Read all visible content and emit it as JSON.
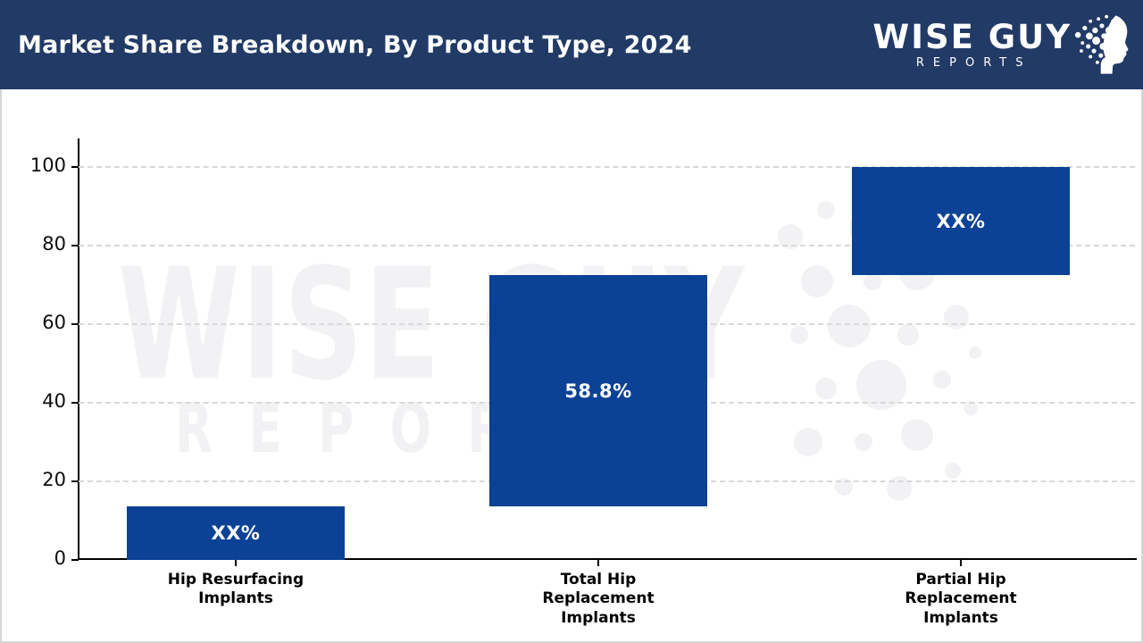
{
  "header": {
    "title": "Market Share Breakdown, By Product Type, 2024",
    "logo": {
      "name": "WISE GUY",
      "subname": "REPORTS"
    }
  },
  "watermark": {
    "line1": "WISE GUY",
    "line2": "REPORTS"
  },
  "chart_data": {
    "type": "bar",
    "subtype": "floating-waterfall-percent",
    "title": "Market Share Breakdown, By Product Type, 2024",
    "categories": [
      "Hip Resurfacing\nImplants",
      "Total Hip\nReplacement\nImplants",
      "Partial Hip\nReplacement\nImplants"
    ],
    "segments": [
      {
        "category": "Hip Resurfacing Implants",
        "label": "XX%",
        "from": 0,
        "to": 13.6
      },
      {
        "category": "Total Hip Replacement Implants",
        "label": "58.8%",
        "from": 13.6,
        "to": 72.4
      },
      {
        "category": "Partial Hip Replacement Implants",
        "label": "XX%",
        "from": 72.4,
        "to": 100
      }
    ],
    "ylim": [
      0,
      100
    ],
    "yticks": [
      0,
      20,
      40,
      60,
      80,
      100
    ],
    "xlabel": "",
    "ylabel": "",
    "grid": "dashed-horizontal",
    "legend": "none",
    "bar_color": "#0B4295",
    "bar_label_color": "#FFFFFF"
  },
  "colors": {
    "header_bg": "#213A66",
    "accent_blue": "#0B4295",
    "watermark": "#F2F2F4",
    "grid": "#D8D8D8",
    "axis": "#000000",
    "frame_border": "#D6D6D6"
  }
}
